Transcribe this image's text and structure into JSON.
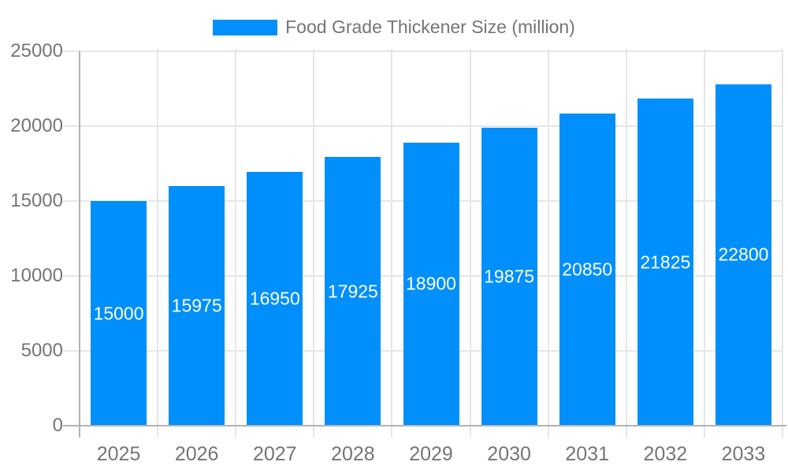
{
  "chart_data": {
    "type": "bar",
    "title": "Food Grade Thickener Size (million)",
    "categories": [
      "2025",
      "2026",
      "2027",
      "2028",
      "2029",
      "2030",
      "2031",
      "2032",
      "2033"
    ],
    "values": [
      15000,
      15975,
      16950,
      17925,
      18900,
      19875,
      20850,
      21825,
      22800
    ],
    "y_ticks": [
      0,
      5000,
      10000,
      15000,
      20000,
      25000
    ],
    "ylim": [
      0,
      25000
    ],
    "xlabel": "",
    "ylabel": "",
    "grid": true,
    "legend_position": "top",
    "bar_color": "#008ffb",
    "bar_label_color": "#ffffff",
    "axis_text_color": "#757575",
    "grid_color": "#e6e6e6",
    "axis_line_color": "#b3b3b3",
    "background_color": "#ffffff"
  }
}
